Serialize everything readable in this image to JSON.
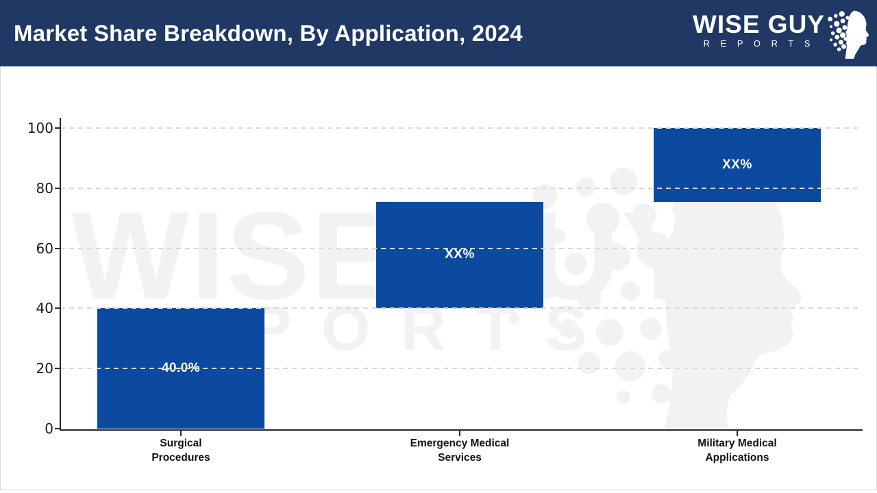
{
  "header": {
    "title": "Market Share Breakdown, By Application, 2024",
    "background_color": "#1f3864",
    "logo": {
      "brand_line1": "WISE GUY",
      "brand_line2": "R E P O R T S"
    }
  },
  "watermark": {
    "line1": "WISE GUY",
    "line2": "REPORTS"
  },
  "chart_data": {
    "type": "bar",
    "subtype": "waterfall-segment",
    "title": "Market Share Breakdown, By Application, 2024",
    "categories": [
      "Surgical Procedures",
      "Emergency Medical Services",
      "Military Medical Applications"
    ],
    "category_label_lines": [
      [
        "Surgical",
        "Procedures"
      ],
      [
        "Emergency Medical",
        "Services"
      ],
      [
        "Military Medical",
        "Applications"
      ]
    ],
    "bars": [
      {
        "from": 0,
        "to": 40,
        "label": "40.0%"
      },
      {
        "from": 40,
        "to": 75.5,
        "label": "XX%"
      },
      {
        "from": 75.5,
        "to": 100,
        "label": "XX%"
      }
    ],
    "xlabel": "",
    "ylabel": "",
    "ylim": [
      0,
      100
    ],
    "yticks": [
      0,
      20,
      40,
      60,
      80,
      100
    ],
    "grid": "horizontal-dashed",
    "legend": "none",
    "bar_color": "#0b4a9f",
    "bar_label_color": "#ffffff",
    "axis_color": "#262626",
    "grid_color": "#d9d9d9"
  }
}
